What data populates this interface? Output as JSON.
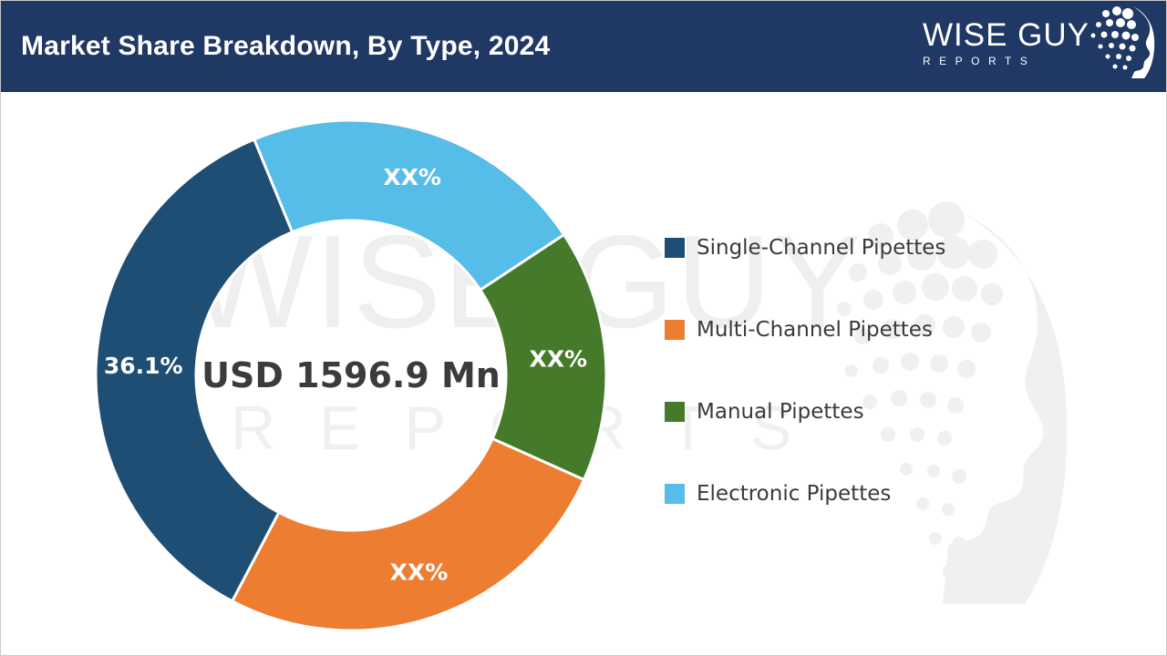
{
  "header": {
    "title": "Market Share Breakdown, By Type, 2024",
    "logo": {
      "wordmark": "WISE GUY",
      "subtitle": "REPORTS"
    }
  },
  "watermark": {
    "line1": "WISE GUY",
    "line2": "REPORTS"
  },
  "chart_data": {
    "type": "pie",
    "subtype": "donut",
    "title": "Market Share Breakdown, By Type, 2024",
    "center_label": "USD 1596.9 Mn",
    "units": "percent of market share",
    "legend_position": "right",
    "start_angle_deg": 112.3,
    "clockwise": true,
    "series": [
      {
        "label": "Single-Channel Pipettes",
        "value": 36.1,
        "displayed_value": "36.1%",
        "color": "#1f4e74",
        "value_estimated": false
      },
      {
        "label": "Multi-Channel Pipettes",
        "value": 26.0,
        "displayed_value": "XX%",
        "color": "#ed7d31",
        "value_estimated": true
      },
      {
        "label": "Manual Pipettes",
        "value": 16.0,
        "displayed_value": "XX%",
        "color": "#457a2a",
        "value_estimated": true
      },
      {
        "label": "Electronic Pipettes",
        "value": 21.9,
        "displayed_value": "XX%",
        "color": "#56bce8",
        "value_estimated": true
      }
    ],
    "draw_order": [
      3,
      2,
      1,
      0
    ]
  },
  "colors": {
    "header_bg": "#1f3864",
    "watermark": "#f0f0f0",
    "center_text": "#3b3b3b",
    "slice_gap": "#ffffff"
  }
}
